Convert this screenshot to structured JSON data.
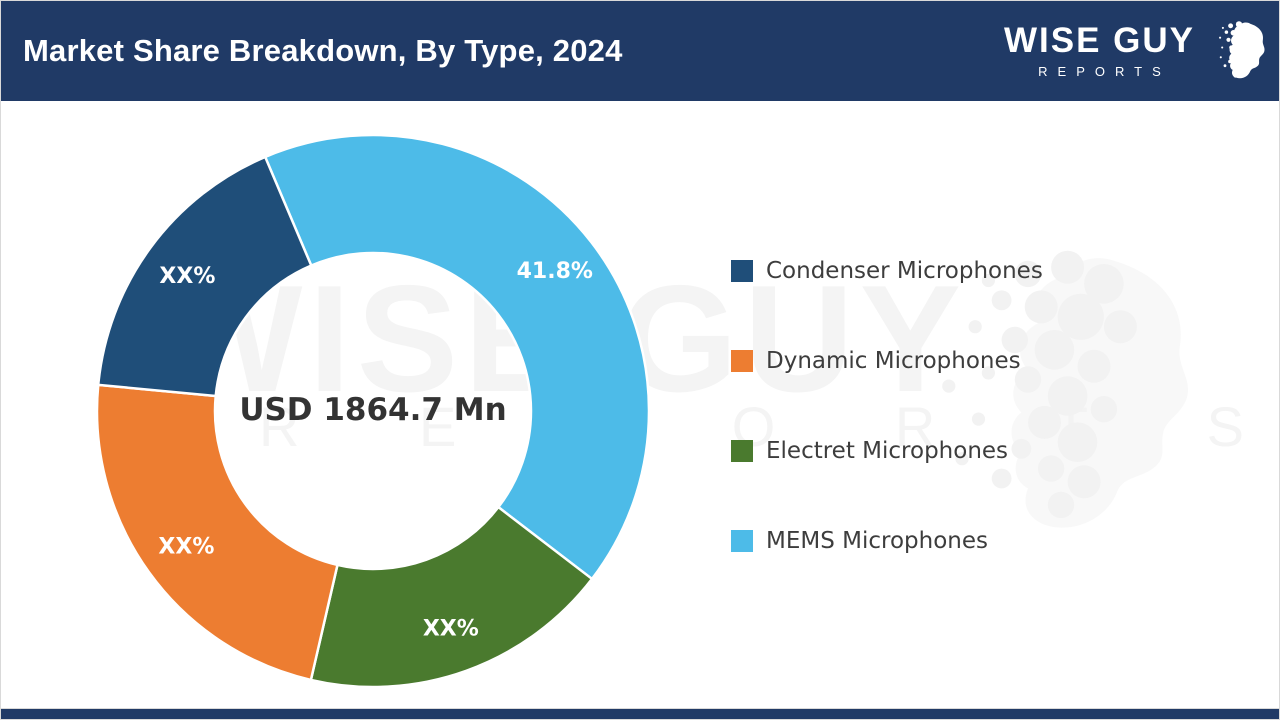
{
  "header": {
    "title": "Market Share Breakdown, By Type, 2024",
    "logo_line1": "WISE GUY",
    "logo_line2": "REPORTS"
  },
  "chart_data": {
    "type": "pie",
    "subtype": "donut",
    "title": "Market Share Breakdown, By Type, 2024",
    "center_label": "USD 1864.7 Mn",
    "start_angle_deg": -23,
    "legend_position": "right",
    "segments": [
      {
        "label": "MEMS Microphones",
        "display_value": "41.8%",
        "value_pct": 41.8,
        "color": "#4DBBE8"
      },
      {
        "label": "Electret Microphones",
        "display_value": "XX%",
        "value_pct": 18.2,
        "color": "#4A7A2E"
      },
      {
        "label": "Dynamic Microphones",
        "display_value": "XX%",
        "value_pct": 22.9,
        "color": "#ED7D31"
      },
      {
        "label": "Condenser Microphones",
        "display_value": "XX%",
        "value_pct": 17.1,
        "color": "#1F4E79"
      }
    ],
    "legend": [
      {
        "label": "Condenser Microphones",
        "color": "#1F4E79"
      },
      {
        "label": "Dynamic Microphones",
        "color": "#ED7D31"
      },
      {
        "label": "Electret Microphones",
        "color": "#4A7A2E"
      },
      {
        "label": "MEMS Microphones",
        "color": "#4DBBE8"
      }
    ]
  },
  "watermark": {
    "line1": "WISE GUY",
    "line2": "R E P O R T S"
  },
  "colors": {
    "header_bg": "#203A66",
    "footer_bg": "#203A66",
    "center_text": "#333333",
    "legend_text": "#3D3D3D",
    "watermark_text": "#F4F4F4",
    "watermark_face": "#F2F2F2"
  }
}
